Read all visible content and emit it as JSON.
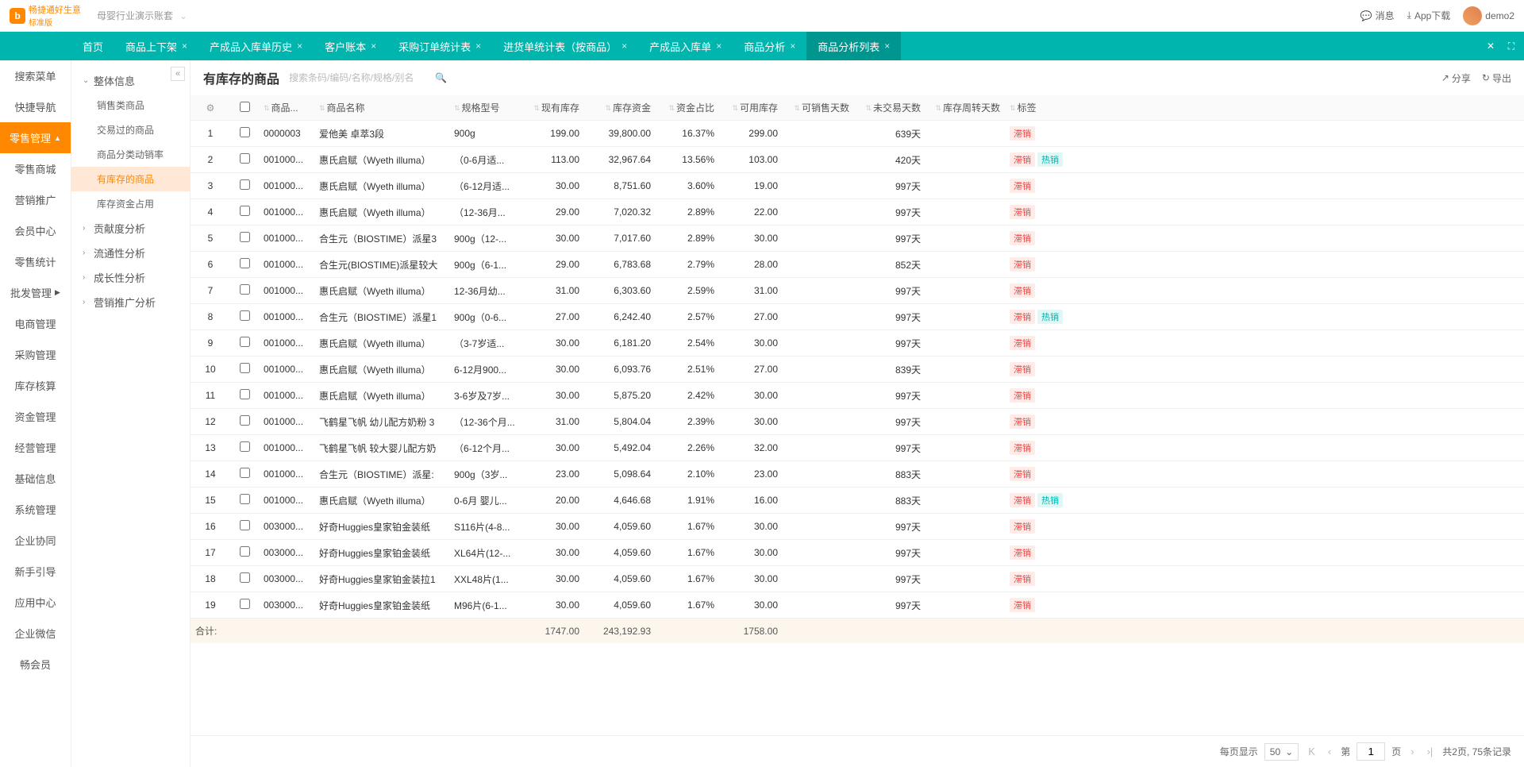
{
  "header": {
    "logo_text": "畅捷通好生意",
    "logo_sub": "标准版",
    "account": "母婴行业演示账套",
    "msg": "消息",
    "app_download": "App下载",
    "user": "demo2"
  },
  "tabs": {
    "items": [
      {
        "label": "首页",
        "closable": false
      },
      {
        "label": "商品上下架",
        "closable": true
      },
      {
        "label": "产成品入库单历史",
        "closable": true
      },
      {
        "label": "客户账本",
        "closable": true
      },
      {
        "label": "采购订单统计表",
        "closable": true
      },
      {
        "label": "进货单统计表（按商品）",
        "closable": true
      },
      {
        "label": "产成品入库单",
        "closable": true
      },
      {
        "label": "商品分析",
        "closable": true
      },
      {
        "label": "商品分析列表",
        "closable": true,
        "active": true
      }
    ]
  },
  "left_nav": {
    "items": [
      {
        "label": "搜索菜单"
      },
      {
        "label": "快捷导航"
      },
      {
        "label": "零售管理",
        "active": true,
        "expandable": true
      },
      {
        "label": "零售商城"
      },
      {
        "label": "营销推广"
      },
      {
        "label": "会员中心"
      },
      {
        "label": "零售统计"
      },
      {
        "label": "批发管理",
        "expandable": true
      },
      {
        "label": "电商管理"
      },
      {
        "label": "采购管理"
      },
      {
        "label": "库存核算"
      },
      {
        "label": "资金管理"
      },
      {
        "label": "经营管理"
      },
      {
        "label": "基础信息"
      },
      {
        "label": "系统管理"
      },
      {
        "label": "企业协同"
      },
      {
        "label": "新手引导"
      },
      {
        "label": "应用中心"
      },
      {
        "label": "企业微信"
      },
      {
        "label": "畅会员"
      }
    ]
  },
  "sub_nav": {
    "group1_label": "整体信息",
    "group1_items": [
      {
        "label": "销售类商品"
      },
      {
        "label": "交易过的商品"
      },
      {
        "label": "商品分类动销率"
      },
      {
        "label": "有库存的商品",
        "active": true
      },
      {
        "label": "库存资金占用"
      }
    ],
    "groups_collapsed": [
      {
        "label": "贡献度分析"
      },
      {
        "label": "流通性分析"
      },
      {
        "label": "成长性分析"
      },
      {
        "label": "营销推广分析"
      }
    ]
  },
  "page": {
    "title": "有库存的商品",
    "search_placeholder": "搜索条码/编码/名称/规格/别名",
    "share": "分享",
    "export": "导出"
  },
  "table": {
    "columns": [
      "",
      "",
      "商品...",
      "商品名称",
      "规格型号",
      "现有库存",
      "库存资金",
      "资金占比",
      "可用库存",
      "可销售天数",
      "未交易天数",
      "库存周转天数",
      "标签"
    ],
    "rows": [
      {
        "n": "1",
        "code": "0000003",
        "name": "爱他美 卓萃3段",
        "spec": "900g",
        "stock": "199.00",
        "fund": "39,800.00",
        "pct": "16.37%",
        "avail": "299.00",
        "sell": "",
        "notrade": "639天",
        "turn": "",
        "tags": [
          "滞销"
        ]
      },
      {
        "n": "2",
        "code": "001000...",
        "name": "惠氏启赋（Wyeth illuma）",
        "spec": "（0-6月适...",
        "stock": "113.00",
        "fund": "32,967.64",
        "pct": "13.56%",
        "avail": "103.00",
        "sell": "",
        "notrade": "420天",
        "turn": "",
        "tags": [
          "滞销",
          "热销"
        ]
      },
      {
        "n": "3",
        "code": "001000...",
        "name": "惠氏启赋（Wyeth illuma）",
        "spec": "（6-12月适...",
        "stock": "30.00",
        "fund": "8,751.60",
        "pct": "3.60%",
        "avail": "19.00",
        "sell": "",
        "notrade": "997天",
        "turn": "",
        "tags": [
          "滞销"
        ]
      },
      {
        "n": "4",
        "code": "001000...",
        "name": "惠氏启赋（Wyeth illuma）",
        "spec": "（12-36月...",
        "stock": "29.00",
        "fund": "7,020.32",
        "pct": "2.89%",
        "avail": "22.00",
        "sell": "",
        "notrade": "997天",
        "turn": "",
        "tags": [
          "滞销"
        ]
      },
      {
        "n": "5",
        "code": "001000...",
        "name": "合生元（BIOSTIME）派星3",
        "spec": "900g（12-...",
        "stock": "30.00",
        "fund": "7,017.60",
        "pct": "2.89%",
        "avail": "30.00",
        "sell": "",
        "notrade": "997天",
        "turn": "",
        "tags": [
          "滞销"
        ]
      },
      {
        "n": "6",
        "code": "001000...",
        "name": "合生元(BIOSTIME)派星较大",
        "spec": "900g（6-1...",
        "stock": "29.00",
        "fund": "6,783.68",
        "pct": "2.79%",
        "avail": "28.00",
        "sell": "",
        "notrade": "852天",
        "turn": "",
        "tags": [
          "滞销"
        ]
      },
      {
        "n": "7",
        "code": "001000...",
        "name": "惠氏启赋（Wyeth illuma）",
        "spec": "12-36月幼...",
        "stock": "31.00",
        "fund": "6,303.60",
        "pct": "2.59%",
        "avail": "31.00",
        "sell": "",
        "notrade": "997天",
        "turn": "",
        "tags": [
          "滞销"
        ]
      },
      {
        "n": "8",
        "code": "001000...",
        "name": "合生元（BIOSTIME）派星1",
        "spec": "900g（0-6...",
        "stock": "27.00",
        "fund": "6,242.40",
        "pct": "2.57%",
        "avail": "27.00",
        "sell": "",
        "notrade": "997天",
        "turn": "",
        "tags": [
          "滞销",
          "热销"
        ]
      },
      {
        "n": "9",
        "code": "001000...",
        "name": "惠氏启赋（Wyeth illuma）",
        "spec": "（3-7岁适...",
        "stock": "30.00",
        "fund": "6,181.20",
        "pct": "2.54%",
        "avail": "30.00",
        "sell": "",
        "notrade": "997天",
        "turn": "",
        "tags": [
          "滞销"
        ]
      },
      {
        "n": "10",
        "code": "001000...",
        "name": "惠氏启赋（Wyeth illuma）",
        "spec": "6-12月900...",
        "stock": "30.00",
        "fund": "6,093.76",
        "pct": "2.51%",
        "avail": "27.00",
        "sell": "",
        "notrade": "839天",
        "turn": "",
        "tags": [
          "滞销"
        ]
      },
      {
        "n": "11",
        "code": "001000...",
        "name": "惠氏启赋（Wyeth illuma）",
        "spec": "3-6岁及7岁...",
        "stock": "30.00",
        "fund": "5,875.20",
        "pct": "2.42%",
        "avail": "30.00",
        "sell": "",
        "notrade": "997天",
        "turn": "",
        "tags": [
          "滞销"
        ]
      },
      {
        "n": "12",
        "code": "001000...",
        "name": "飞鹤星飞帆 幼儿配方奶粉 3",
        "spec": "（12-36个月...",
        "stock": "31.00",
        "fund": "5,804.04",
        "pct": "2.39%",
        "avail": "30.00",
        "sell": "",
        "notrade": "997天",
        "turn": "",
        "tags": [
          "滞销"
        ]
      },
      {
        "n": "13",
        "code": "001000...",
        "name": "飞鹤星飞帆 较大婴儿配方奶",
        "spec": "（6-12个月...",
        "stock": "30.00",
        "fund": "5,492.04",
        "pct": "2.26%",
        "avail": "32.00",
        "sell": "",
        "notrade": "997天",
        "turn": "",
        "tags": [
          "滞销"
        ]
      },
      {
        "n": "14",
        "code": "001000...",
        "name": "合生元（BIOSTIME）派星:",
        "spec": "900g（3岁...",
        "stock": "23.00",
        "fund": "5,098.64",
        "pct": "2.10%",
        "avail": "23.00",
        "sell": "",
        "notrade": "883天",
        "turn": "",
        "tags": [
          "滞销"
        ]
      },
      {
        "n": "15",
        "code": "001000...",
        "name": "惠氏启赋（Wyeth illuma）",
        "spec": "0-6月 婴儿...",
        "stock": "20.00",
        "fund": "4,646.68",
        "pct": "1.91%",
        "avail": "16.00",
        "sell": "",
        "notrade": "883天",
        "turn": "",
        "tags": [
          "滞销",
          "热销"
        ]
      },
      {
        "n": "16",
        "code": "003000...",
        "name": "好奇Huggies皇家铂金装纸",
        "spec": "S116片(4-8...",
        "stock": "30.00",
        "fund": "4,059.60",
        "pct": "1.67%",
        "avail": "30.00",
        "sell": "",
        "notrade": "997天",
        "turn": "",
        "tags": [
          "滞销"
        ]
      },
      {
        "n": "17",
        "code": "003000...",
        "name": "好奇Huggies皇家铂金装纸",
        "spec": "XL64片(12-...",
        "stock": "30.00",
        "fund": "4,059.60",
        "pct": "1.67%",
        "avail": "30.00",
        "sell": "",
        "notrade": "997天",
        "turn": "",
        "tags": [
          "滞销"
        ]
      },
      {
        "n": "18",
        "code": "003000...",
        "name": "好奇Huggies皇家铂金装拉1",
        "spec": "XXL48片(1...",
        "stock": "30.00",
        "fund": "4,059.60",
        "pct": "1.67%",
        "avail": "30.00",
        "sell": "",
        "notrade": "997天",
        "turn": "",
        "tags": [
          "滞销"
        ]
      },
      {
        "n": "19",
        "code": "003000...",
        "name": "好奇Huggies皇家铂金装纸",
        "spec": "M96片(6-1...",
        "stock": "30.00",
        "fund": "4,059.60",
        "pct": "1.67%",
        "avail": "30.00",
        "sell": "",
        "notrade": "997天",
        "turn": "",
        "tags": [
          "滞销"
        ]
      }
    ],
    "totals": {
      "label": "合计:",
      "stock": "1747.00",
      "fund": "243,192.93",
      "avail": "1758.00"
    }
  },
  "pagination": {
    "per_page_label": "每页显示",
    "per_page_value": "50",
    "page_label_pre": "第",
    "page_value": "1",
    "page_label_post": "页",
    "summary": "共2页, 75条记录"
  }
}
